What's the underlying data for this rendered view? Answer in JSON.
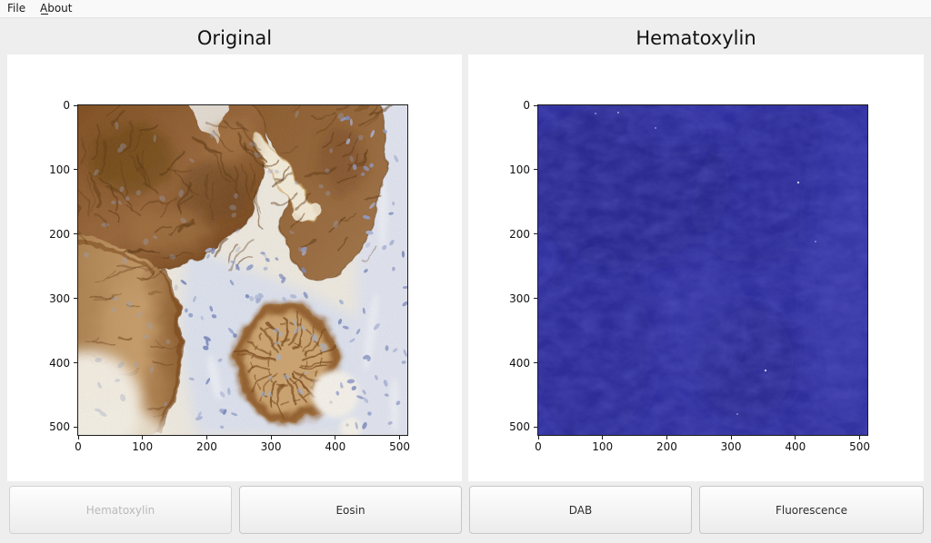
{
  "menubar": {
    "items": [
      {
        "label": "File"
      },
      {
        "label": "About",
        "mnemonic_underline": "A"
      }
    ]
  },
  "panels": [
    {
      "title": "Original",
      "image": "ihc-histology-original",
      "xticks": [
        "0",
        "100",
        "200",
        "300",
        "400",
        "500"
      ],
      "yticks": [
        "0",
        "100",
        "200",
        "300",
        "400",
        "500"
      ]
    },
    {
      "title": "Hematoxylin",
      "image": "hematoxylin-channel",
      "xticks": [
        "0",
        "100",
        "200",
        "300",
        "400",
        "500"
      ],
      "yticks": [
        "0",
        "100",
        "200",
        "300",
        "400",
        "500"
      ]
    }
  ],
  "buttons": [
    {
      "label": "Hematoxylin",
      "enabled": false
    },
    {
      "label": "Eosin",
      "enabled": true
    },
    {
      "label": "DAB",
      "enabled": true
    },
    {
      "label": "Fluorescence",
      "enabled": true
    }
  ],
  "colors": {
    "window_bg": "#eeeeee",
    "panel_bg": "#ffffff",
    "hematoxylin_blue": "#32319f",
    "dab_brown": "#8a5a2c",
    "stroma_blue": "#d9dfee",
    "tissue_ivory": "#ece8df",
    "disabled_text": "#b9b9b9"
  }
}
